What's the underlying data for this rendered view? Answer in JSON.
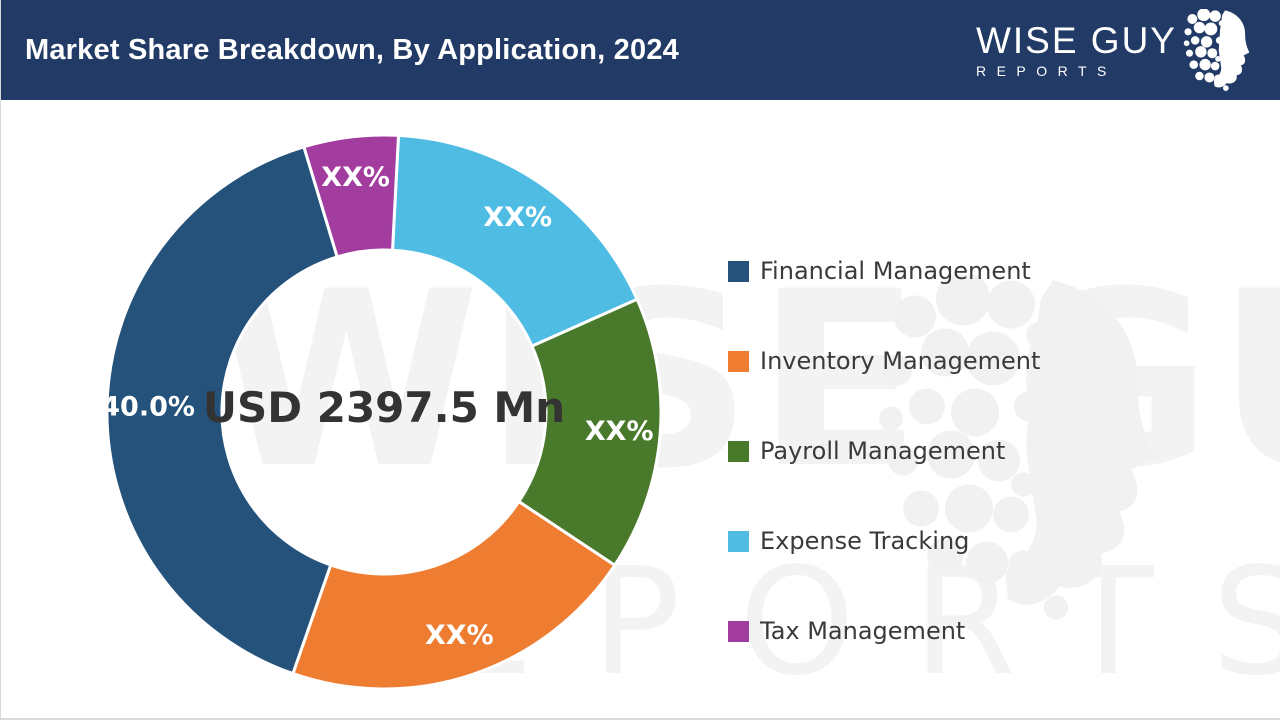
{
  "header": {
    "title": "Market Share Breakdown, By Application, 2024",
    "logo": {
      "line1": "WISE GUY",
      "line2": "REPORTS"
    }
  },
  "watermark": {
    "line1": "WISE GUY",
    "line2": "REPORTS"
  },
  "chart_data": {
    "type": "donut",
    "title": "Market Share Breakdown, By Application, 2024",
    "center_label": "USD 2397.5 Mn",
    "legend_position": "right",
    "series": [
      {
        "name": "Financial Management",
        "value": 40.0,
        "display_label": "40.0%",
        "color": "#24527b"
      },
      {
        "name": "Inventory Management",
        "value": 21.0,
        "display_label": "XX%",
        "color": "#ee7d31"
      },
      {
        "name": "Payroll Management",
        "value": 16.0,
        "display_label": "XX%",
        "color": "#49792a"
      },
      {
        "name": "Expense Tracking",
        "value": 17.5,
        "display_label": "XX%",
        "color": "#4fbce4"
      },
      {
        "name": "Tax Management",
        "value": 5.5,
        "display_label": "XX%",
        "color": "#a23c9e"
      }
    ],
    "draw_order": [
      3,
      2,
      1,
      0,
      4
    ],
    "start_angle_deg": 3
  },
  "colors": {
    "header_bg": "#213a66",
    "center_text": "#333333",
    "legend_text": "#3a3a3a",
    "watermark": "#f3f3f3",
    "segment_gap": "#ffffff"
  }
}
